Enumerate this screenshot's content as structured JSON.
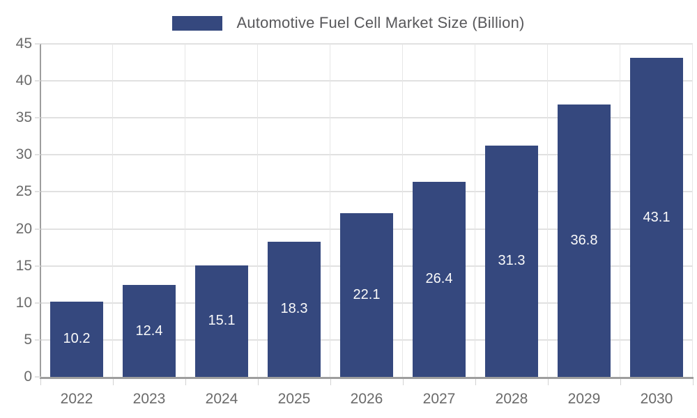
{
  "legend": {
    "label": "Automotive Fuel Cell Market Size (Billion)"
  },
  "chart_data": {
    "type": "bar",
    "title": "Automotive Fuel Cell Market Size (Billion)",
    "series_name": "Automotive Fuel Cell Market Size (Billion)",
    "categories": [
      "2022",
      "2023",
      "2024",
      "2025",
      "2026",
      "2027",
      "2028",
      "2029",
      "2030"
    ],
    "values": [
      10.2,
      12.4,
      15.1,
      18.3,
      22.1,
      26.4,
      31.3,
      36.8,
      43.1
    ],
    "value_labels": [
      "10.2",
      "12.4",
      "15.1",
      "18.3",
      "22.1",
      "26.4",
      "31.3",
      "36.8",
      "43.1"
    ],
    "xlabel": "",
    "ylabel": "",
    "ylim": [
      0,
      45
    ],
    "yticks": [
      0,
      5,
      10,
      15,
      20,
      25,
      30,
      35,
      40,
      45
    ],
    "ytick_labels": [
      "0",
      "5",
      "10",
      "15",
      "20",
      "25",
      "30",
      "35",
      "40",
      "45"
    ],
    "grid": "horizontal and vertical light gray gridlines",
    "legend_position": "top-center",
    "colors": {
      "bar": "#35487E",
      "value_label": "#FAFAFA",
      "axis": "#9E9E9E",
      "gridline": "#E1E1E1",
      "tick_label": "#6A6A6A",
      "legend_text": "#58585B",
      "background": "#FFFFFF"
    }
  }
}
